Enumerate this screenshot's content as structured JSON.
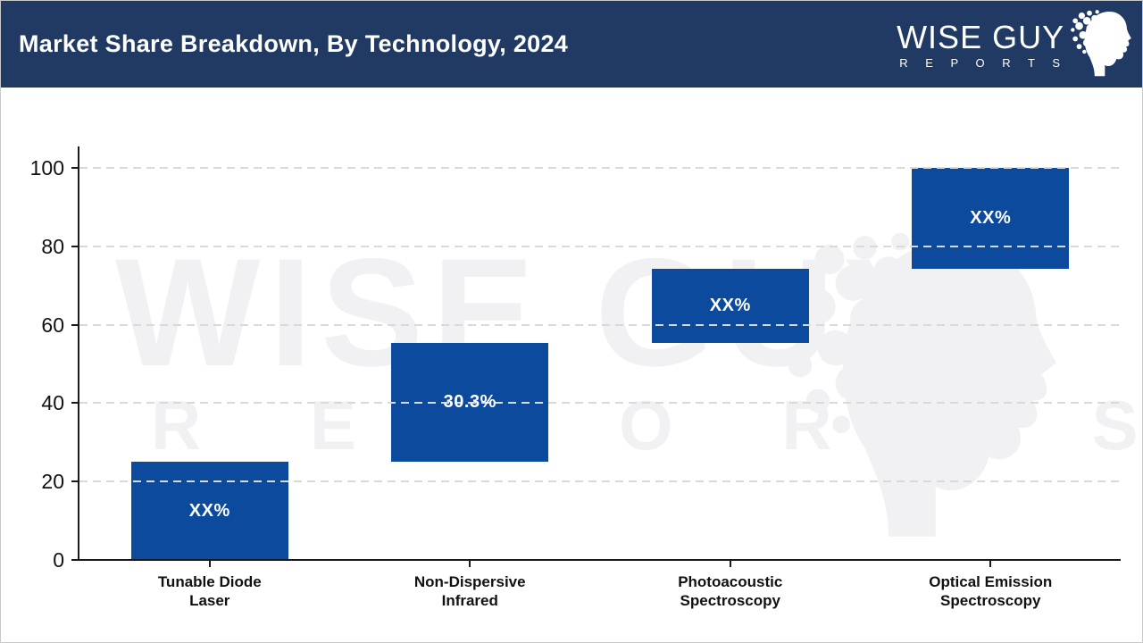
{
  "header": {
    "title": "Market Share Breakdown, By Technology, 2024",
    "logo": {
      "brand": "WISE GUY",
      "sub": "R E P O R T S"
    }
  },
  "watermark": {
    "line1": "WISE GUY",
    "line2": "R E P O R T S"
  },
  "colors": {
    "header_bg": "#203A64",
    "title": "#FFFFFF",
    "bar": "#0C4A9E",
    "bar_label": "#FFFFFF",
    "grid": "#D9D9D9",
    "axis": "#1A1A1A",
    "watermark": "#F1F1F4",
    "border": "#C9C9C9"
  },
  "chart_data": {
    "type": "bar",
    "subtype": "waterfall",
    "title": "Market Share Breakdown, By Technology, 2024",
    "unit": "percent market share",
    "categories": [
      "Tunable Diode Laser",
      "Non-Dispersive Infrared",
      "Photoacoustic Spectroscopy",
      "Optical Emission Spectroscopy"
    ],
    "category_lines": [
      [
        "Tunable Diode",
        "Laser"
      ],
      [
        "Non-Dispersive",
        "Infrared"
      ],
      [
        "Photoacoustic",
        "Spectroscopy"
      ],
      [
        "Optical Emission",
        "Spectroscopy"
      ]
    ],
    "segments": [
      {
        "category": "Tunable Diode Laser",
        "start": 0,
        "end": 25,
        "value": 25,
        "label": "XX%"
      },
      {
        "category": "Non-Dispersive Infrared",
        "start": 25,
        "end": 55.3,
        "value": 30.3,
        "label": "30.3%"
      },
      {
        "category": "Photoacoustic Spectroscopy",
        "start": 55.3,
        "end": 74.3,
        "value": 19,
        "label": "XX%"
      },
      {
        "category": "Optical Emission Spectroscopy",
        "start": 74.3,
        "end": 100,
        "value": 25.7,
        "label": "XX%"
      }
    ],
    "yticks": [
      0,
      20,
      40,
      60,
      80,
      100
    ],
    "ylim": [
      0,
      105
    ],
    "grid": {
      "horizontal": true,
      "style": "dashed"
    },
    "legend": null
  }
}
